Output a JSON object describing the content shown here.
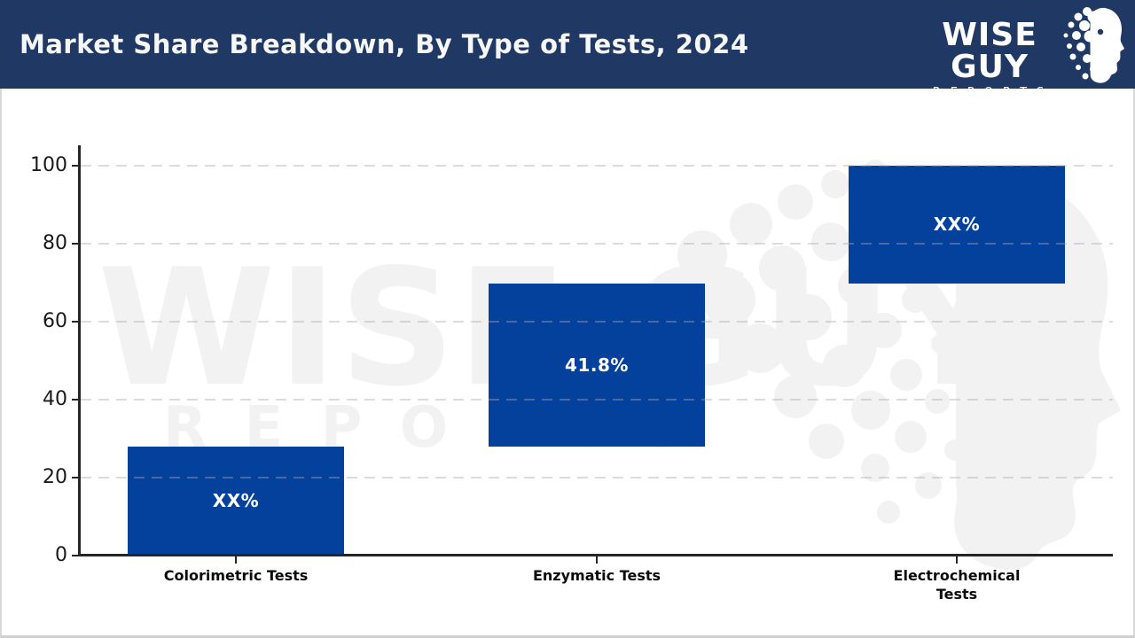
{
  "header": {
    "title": "Market Share Breakdown, By Type of Tests, 2024",
    "logo": {
      "brand": "WISE GUY",
      "sub": "REPORTS"
    }
  },
  "watermark": {
    "brand": "WISE GUY",
    "sub": "R E P O R T S"
  },
  "chart_data": {
    "type": "bar",
    "subtype": "stacked-waterfall-segments",
    "title": "Market Share Breakdown, By Type of Tests, 2024",
    "categories": [
      "Colorimetric Tests",
      "Enzymatic Tests",
      "Electrochemical\nTests"
    ],
    "bars": [
      {
        "category": "Colorimetric Tests",
        "start": 0,
        "end": 28,
        "label": "XX%"
      },
      {
        "category": "Enzymatic Tests",
        "start": 28,
        "end": 69.8,
        "label": "41.8%"
      },
      {
        "category": "Electrochemical Tests",
        "start": 69.8,
        "end": 100,
        "label": "XX%"
      }
    ],
    "xlabel": "",
    "ylabel": "",
    "ylim": [
      0,
      100
    ],
    "yticks": [
      0,
      20,
      40,
      60,
      80,
      100
    ],
    "grid": "horizontal-dashed",
    "legend": "none",
    "bar_color": "#04419c",
    "value_label_color": "#ffffff",
    "header_color": "#1f3864"
  }
}
